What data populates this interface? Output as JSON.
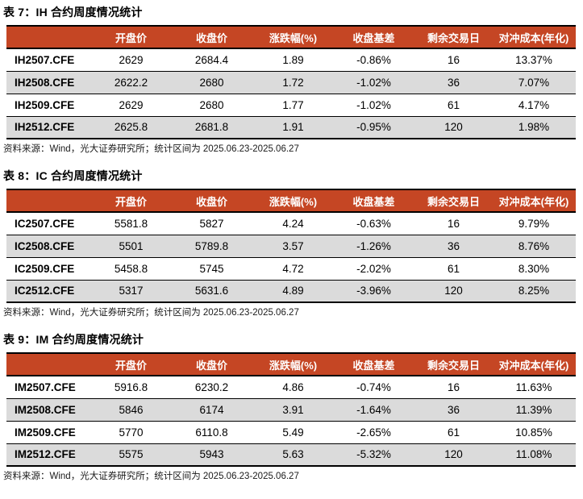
{
  "colors": {
    "header_bg": "#C54624",
    "header_text": "#ffffff",
    "row_bg": "#ffffff",
    "row_alt_bg": "#DBDBDB",
    "border": "#000000"
  },
  "columns": [
    "",
    "开盘价",
    "收盘价",
    "涨跌幅(%)",
    "收盘基差",
    "剩余交易日",
    "对冲成本(年化)"
  ],
  "source_note": "资料来源：Wind，光大证券研究所；统计区间为 2025.06.23-2025.06.27",
  "tables": [
    {
      "title": "表 7：IH 合约周度情况统计",
      "rows": [
        {
          "name": "IH2507.CFE",
          "values": [
            "2629",
            "2684.4",
            "1.89",
            "-0.86%",
            "16",
            "13.37%"
          ]
        },
        {
          "name": "IH2508.CFE",
          "values": [
            "2622.2",
            "2680",
            "1.72",
            "-1.02%",
            "36",
            "7.07%"
          ]
        },
        {
          "name": "IH2509.CFE",
          "values": [
            "2629",
            "2680",
            "1.77",
            "-1.02%",
            "61",
            "4.17%"
          ]
        },
        {
          "name": "IH2512.CFE",
          "values": [
            "2625.8",
            "2681.8",
            "1.91",
            "-0.95%",
            "120",
            "1.98%"
          ]
        }
      ]
    },
    {
      "title": "表 8：IC 合约周度情况统计",
      "rows": [
        {
          "name": "IC2507.CFE",
          "values": [
            "5581.8",
            "5827",
            "4.24",
            "-0.63%",
            "16",
            "9.79%"
          ]
        },
        {
          "name": "IC2508.CFE",
          "values": [
            "5501",
            "5789.8",
            "3.57",
            "-1.26%",
            "36",
            "8.76%"
          ]
        },
        {
          "name": "IC2509.CFE",
          "values": [
            "5458.8",
            "5745",
            "4.72",
            "-2.02%",
            "61",
            "8.30%"
          ]
        },
        {
          "name": "IC2512.CFE",
          "values": [
            "5317",
            "5631.6",
            "4.89",
            "-3.96%",
            "120",
            "8.25%"
          ]
        }
      ]
    },
    {
      "title": "表 9：IM 合约周度情况统计",
      "rows": [
        {
          "name": "IM2507.CFE",
          "values": [
            "5916.8",
            "6230.2",
            "4.86",
            "-0.74%",
            "16",
            "11.63%"
          ]
        },
        {
          "name": "IM2508.CFE",
          "values": [
            "5846",
            "6174",
            "3.91",
            "-1.64%",
            "36",
            "11.39%"
          ]
        },
        {
          "name": "IM2509.CFE",
          "values": [
            "5770",
            "6110.8",
            "5.49",
            "-2.65%",
            "61",
            "10.85%"
          ]
        },
        {
          "name": "IM2512.CFE",
          "values": [
            "5575",
            "5943",
            "5.63",
            "-5.32%",
            "120",
            "11.08%"
          ]
        }
      ]
    }
  ]
}
